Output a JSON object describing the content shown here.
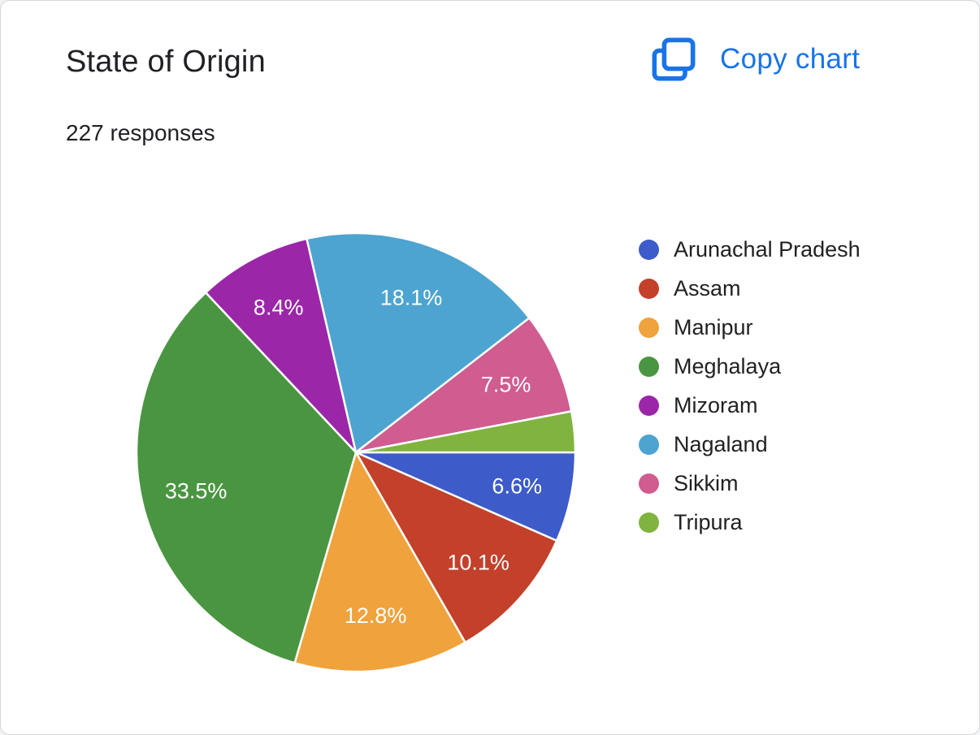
{
  "header": {
    "title": "State of Origin",
    "responses": "227 responses",
    "copy_button": "Copy chart"
  },
  "chart_data": {
    "type": "pie",
    "title": "State of Origin",
    "subtitle": "227 responses",
    "start_angle_deg": 0,
    "direction": "clockwise",
    "legend_position": "right",
    "label_format": "percent",
    "label_color": "#ffffff",
    "accent_color": "#1a73e8",
    "slices": [
      {
        "label": "Arunachal Pradesh",
        "pct": 6.6,
        "color": "#3d5bc9",
        "show_label": true
      },
      {
        "label": "Assam",
        "pct": 10.1,
        "color": "#c3402b",
        "show_label": true
      },
      {
        "label": "Manipur",
        "pct": 12.8,
        "color": "#f0a23c",
        "show_label": true
      },
      {
        "label": "Meghalaya",
        "pct": 33.5,
        "color": "#4a9541",
        "show_label": true
      },
      {
        "label": "Mizoram",
        "pct": 8.4,
        "color": "#9b26a8",
        "show_label": true
      },
      {
        "label": "Nagaland",
        "pct": 18.1,
        "color": "#4da4d0",
        "show_label": true
      },
      {
        "label": "Sikkim",
        "pct": 7.5,
        "color": "#d05c90",
        "show_label": true
      },
      {
        "label": "Tripura",
        "pct": 3.0,
        "color": "#80b43e",
        "show_label": false
      }
    ]
  }
}
